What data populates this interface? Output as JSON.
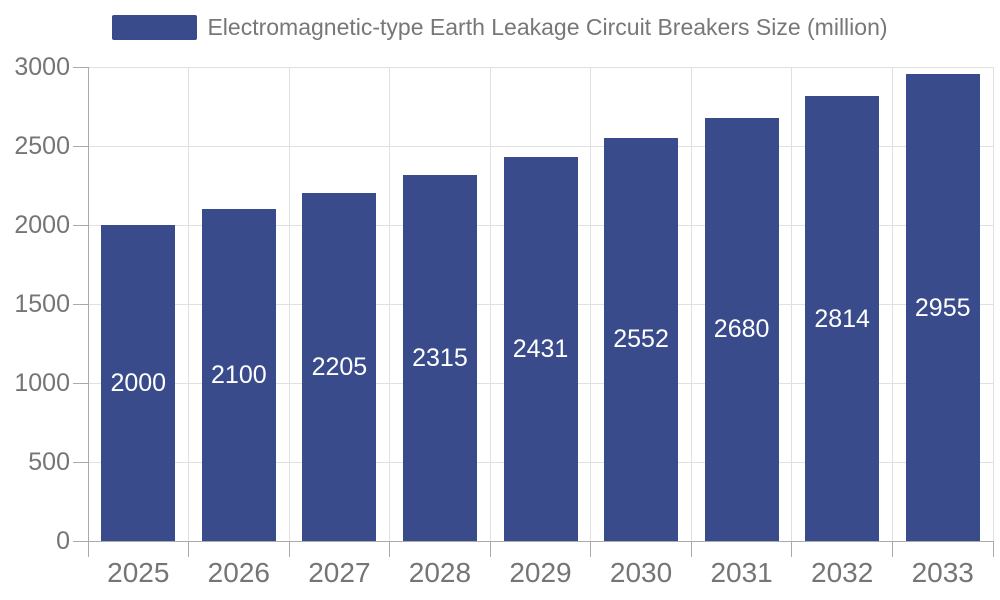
{
  "legend": {
    "label": "Electromagnetic-type Earth Leakage Circuit Breakers Size (million)"
  },
  "chart_data": {
    "type": "bar",
    "title": "Electromagnetic-type Earth Leakage Circuit Breakers Size (million)",
    "categories": [
      "2025",
      "2026",
      "2027",
      "2028",
      "2029",
      "2030",
      "2031",
      "2032",
      "2033"
    ],
    "series": [
      {
        "name": "Electromagnetic-type Earth Leakage Circuit Breakers Size (million)",
        "values": [
          2000,
          2100,
          2205,
          2315,
          2431,
          2552,
          2680,
          2814,
          2955
        ]
      }
    ],
    "bar_labels": [
      "2000",
      "2100",
      "2205",
      "2315",
      "2431",
      "2552",
      "2680",
      "2814",
      "2955"
    ],
    "xlabel": "",
    "ylabel": "",
    "ylim": [
      0,
      3000
    ],
    "yticks": [
      0,
      500,
      1000,
      1500,
      2000,
      2500,
      3000
    ],
    "grid": true,
    "legend_position": "top",
    "colors": {
      "bar": "#3A4B8C",
      "grid": "#E0E0E0",
      "axis": "#AAAAAA",
      "tick_text": "#757575",
      "legend_text": "#777777",
      "bar_label_text": "#FFFFFF",
      "background": "#FFFFFF"
    }
  }
}
